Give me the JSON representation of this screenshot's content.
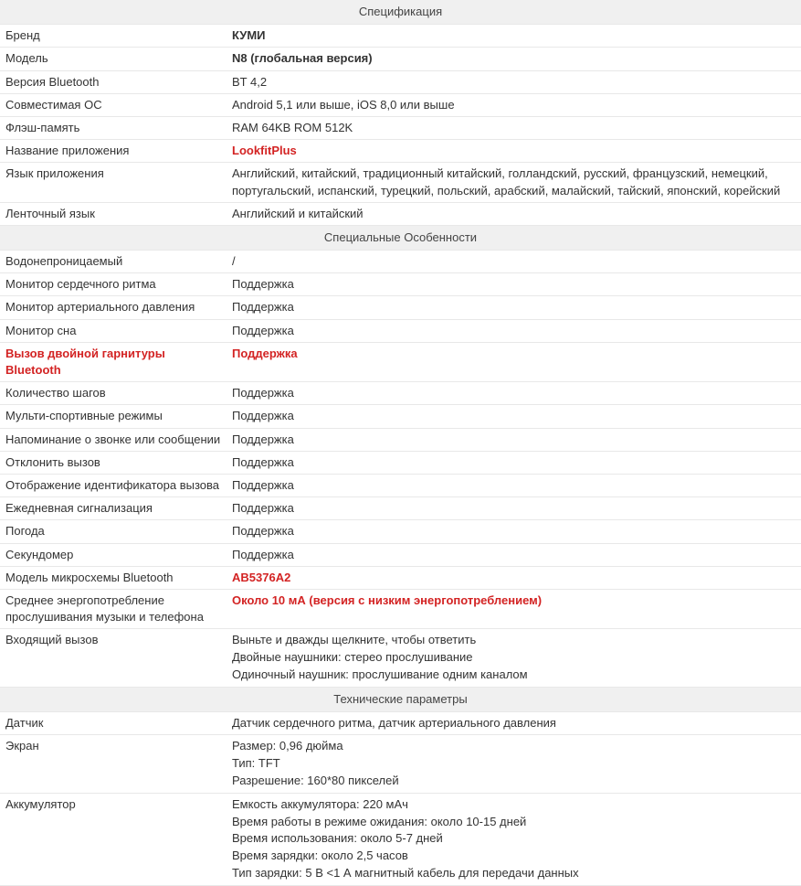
{
  "sections": [
    {
      "title": "Спецификация",
      "rows": [
        {
          "label": "Бренд",
          "value": "КУМИ",
          "valueBold": true
        },
        {
          "label": "Модель",
          "value": "N8 (глобальная версия)",
          "valueBold": true
        },
        {
          "label": "Версия Bluetooth",
          "value": "BT 4,2"
        },
        {
          "label": "Совместимая ОС",
          "value": "Android 5,1 или выше, iOS 8,0 или выше"
        },
        {
          "label": "Флэш-память",
          "value": "RAM 64KB ROM 512K"
        },
        {
          "label": "Название приложения",
          "value": "LookfitPlus",
          "valueRed": true,
          "valueBold": true
        },
        {
          "label": "Язык приложения",
          "value": "Английский, китайский, традиционный китайский, голландский, русский, французский, немецкий, португальский, испанский, турецкий, польский, арабский, малайский, тайский, японский, корейский"
        },
        {
          "label": "Ленточный язык",
          "value": "Английский и китайский"
        }
      ]
    },
    {
      "title": "Специальные Особенности",
      "rows": [
        {
          "label": "Водонепроницаемый",
          "value": "/"
        },
        {
          "label": "Монитор сердечного ритма",
          "value": "Поддержка"
        },
        {
          "label": "Монитор артериального давления",
          "value": "Поддержка"
        },
        {
          "label": "Монитор сна",
          "value": "Поддержка"
        },
        {
          "label": "Вызов двойной гарнитуры Bluetooth",
          "value": "Поддержка",
          "labelRed": true,
          "labelBold": true,
          "valueRed": true,
          "valueBold": true
        },
        {
          "label": "Количество шагов",
          "value": "Поддержка"
        },
        {
          "label": "Мульти-спортивные режимы",
          "value": "Поддержка"
        },
        {
          "label": "Напоминание о звонке или сообщении",
          "value": "Поддержка"
        },
        {
          "label": "Отклонить вызов",
          "value": "Поддержка"
        },
        {
          "label": "Отображение идентификатора вызова",
          "value": "Поддержка"
        },
        {
          "label": "Ежедневная сигнализация",
          "value": "Поддержка"
        },
        {
          "label": "Погода",
          "value": "Поддержка"
        },
        {
          "label": "Секундомер",
          "value": "Поддержка"
        },
        {
          "label": "Модель микросхемы Bluetooth",
          "value": "AB5376A2",
          "valueRed": true,
          "valueBold": true
        },
        {
          "label": "Среднее энергопотребление прослушивания музыки и телефона",
          "value": "Около 10 мА (версия с низким энергопотреблением)",
          "valueRed": true,
          "valueBold": true
        },
        {
          "label": "Входящий вызов",
          "lines": [
            "Выньте и дважды щелкните, чтобы ответить",
            "Двойные наушники: стерео прослушивание",
            "Одиночный наушник: прослушивание одним каналом"
          ]
        }
      ]
    },
    {
      "title": "Технические параметры",
      "rows": [
        {
          "label": "Датчик",
          "value": "Датчик сердечного ритма, датчик артериального давления"
        },
        {
          "label": "Экран",
          "lines": [
            "Размер: 0,96 дюйма",
            "Тип: TFT",
            "Разрешение: 160*80 пикселей"
          ]
        },
        {
          "label": "Аккумулятор",
          "lines": [
            "Емкость аккумулятора: 220 мАч",
            "Время работы в режиме ожидания: около 10-15 дней",
            "Время использования: около 5-7 дней",
            "Время зарядки: около 2,5 часов",
            "Тип зарядки: 5 В <1 А магнитный кабель для передачи данных"
          ]
        }
      ]
    }
  ]
}
